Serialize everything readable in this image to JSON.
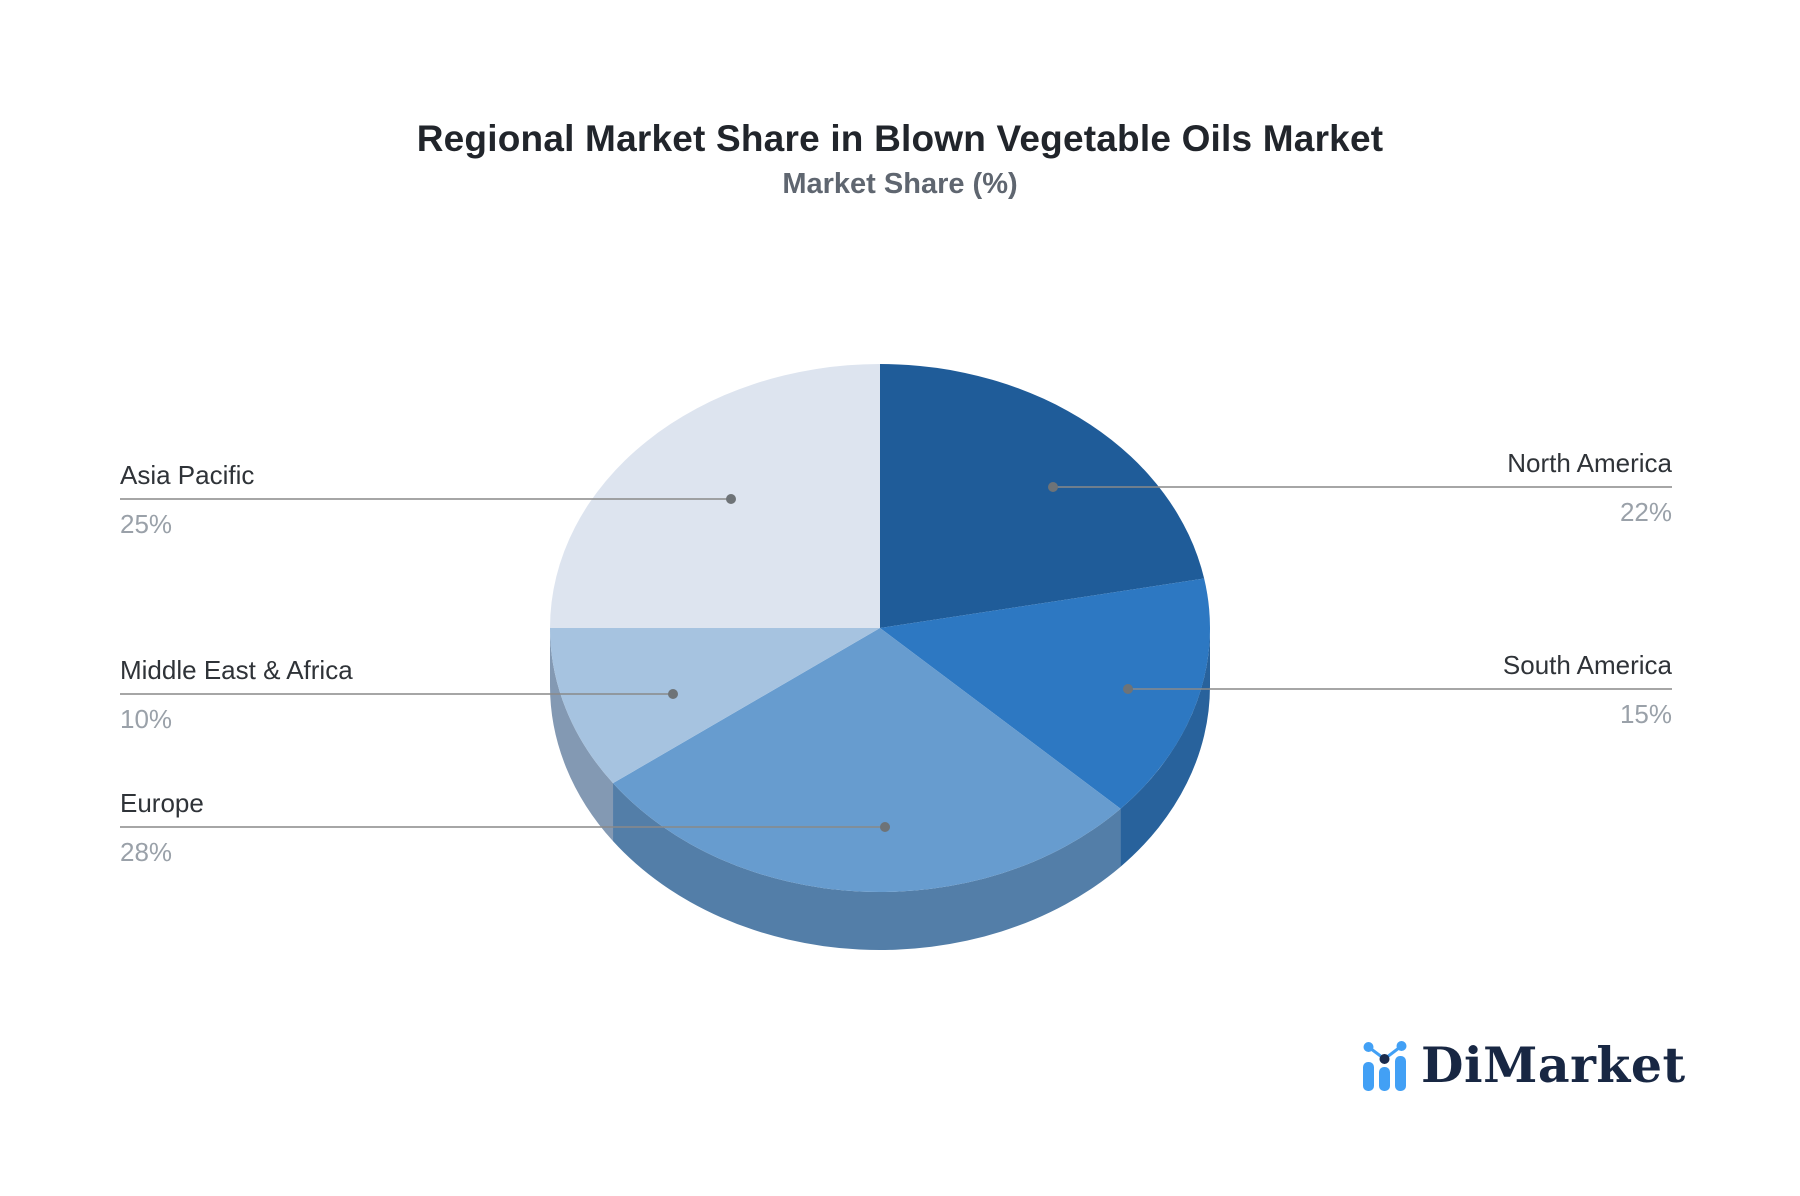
{
  "chart_data": {
    "type": "pie",
    "title": "Regional Market Share in Blown Vegetable Oils Market",
    "subtitle": "Market Share (%)",
    "unit": "%",
    "style": "3d-pie",
    "start_angle": "12-oclock-clockwise",
    "legend": "none (callout labels with leader lines)",
    "label_colors": {
      "name": "#2f3338",
      "value": "#9aa1a9",
      "leader_line": "#898989",
      "leader_dot": "#6e7377"
    },
    "slices": [
      {
        "label": "North America",
        "value": 22,
        "value_text": "22%",
        "color": "#1f5c99",
        "side_color": "#1c4f85"
      },
      {
        "label": "South America",
        "value": 15,
        "value_text": "15%",
        "color": "#2d78c2",
        "side_color": "#28629c"
      },
      {
        "label": "Europe",
        "value": 28,
        "value_text": "28%",
        "color": "#679ccf",
        "side_color": "#537ea8"
      },
      {
        "label": "Middle East & Africa",
        "value": 10,
        "value_text": "10%",
        "color": "#a6c3e0",
        "side_color": "#8399b3"
      },
      {
        "label": "Asia Pacific",
        "value": 25,
        "value_text": "25%",
        "color": "#dde4ef",
        "side_color": "#b9c3d2"
      }
    ]
  },
  "branding": {
    "logo_text": "DiMarket",
    "logo_icon": "bar-line-chart-icon",
    "logo_text_color": "#182743",
    "logo_accent_color": "#42a0f5",
    "logo_dot_dark_color": "#1b2b4d"
  }
}
